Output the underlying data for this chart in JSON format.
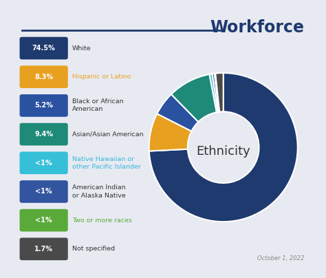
{
  "title": "Workforce",
  "center_label": "Ethnicity",
  "date_label": "October 1, 2022",
  "slices": [
    {
      "label": "White",
      "pct_text": "74.5%",
      "value": 74.5,
      "color": "#1e3a6e",
      "text_color": "#333333"
    },
    {
      "label": "Hispanic or Latino",
      "pct_text": "8.3%",
      "value": 8.3,
      "color": "#e8a020",
      "text_color": "#e8a020"
    },
    {
      "label": "Black or African\nAmerican",
      "pct_text": "5.2%",
      "value": 5.2,
      "color": "#2a52a0",
      "text_color": "#333333"
    },
    {
      "label": "Asian/Asian American",
      "pct_text": "9.4%",
      "value": 9.4,
      "color": "#1e8a78",
      "text_color": "#333333"
    },
    {
      "label": "Native Hawaiian or\nother Pacific Islander",
      "pct_text": "<1%",
      "value": 0.6,
      "color": "#35c0d8",
      "text_color": "#35b8d8"
    },
    {
      "label": "American Indian\nor Alaska Native",
      "pct_text": "<1%",
      "value": 0.5,
      "color": "#3355a0",
      "text_color": "#333333"
    },
    {
      "label": "Two or more races",
      "pct_text": "<1%",
      "value": 0.2,
      "color": "#5aaa3a",
      "text_color": "#5aaa3a"
    },
    {
      "label": "Not specified",
      "pct_text": "1.7%",
      "value": 1.7,
      "color": "#4a4a4a",
      "text_color": "#333333"
    }
  ],
  "bg_color": "#e8eaf2",
  "card_color": "#ffffff",
  "title_color": "#1e3a6e",
  "center_label_color": "#333333",
  "donut_startangle": 90,
  "donut_width": 0.52
}
